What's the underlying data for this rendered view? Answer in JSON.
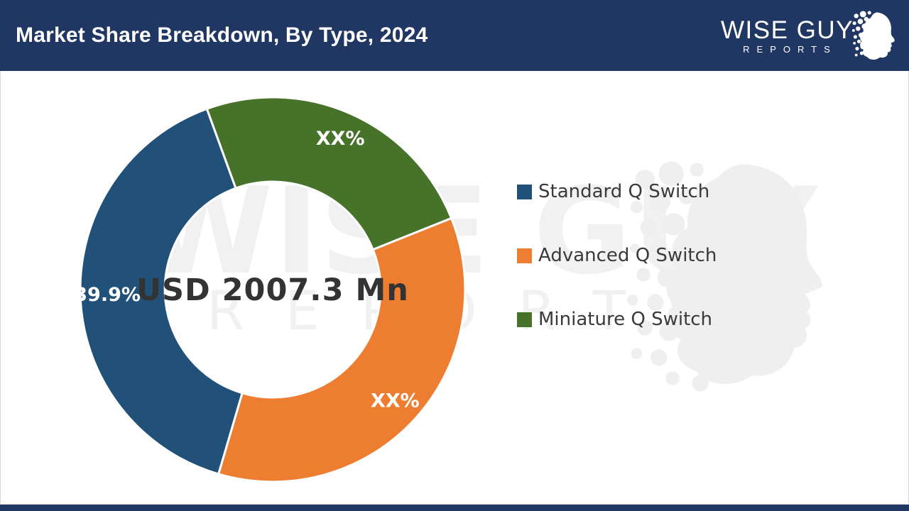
{
  "header": {
    "title": "Market Share Breakdown, By Type, 2024",
    "bg_color": "#203764",
    "logo": {
      "line1": "WISE GUY",
      "line2": "REPORTS"
    }
  },
  "chart_data": {
    "type": "pie",
    "subtype": "donut",
    "title": "Market Share Breakdown, By Type, 2024",
    "center_label": "USD 2007.3 Mn",
    "categories": [
      "Standard Q Switch",
      "Advanced Q Switch",
      "Miniature Q Switch"
    ],
    "values": [
      39.9,
      35.6,
      24.5
    ],
    "display_labels": [
      "39.9%",
      "XX%",
      "XX%"
    ],
    "colors": [
      "#215079",
      "#ED7D31",
      "#46722A"
    ],
    "start_angle": 110,
    "direction": "counterclockwise",
    "inner_radius_ratio": 0.56,
    "legend_position": "right"
  },
  "watermark": {
    "line1": "WISE GUY",
    "line2": "REPORTS"
  }
}
